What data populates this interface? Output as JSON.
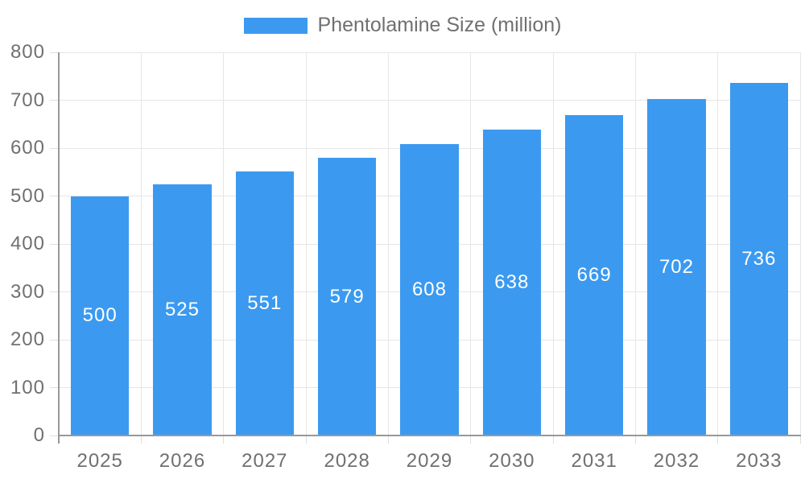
{
  "chart_data": {
    "type": "bar",
    "legend": "Phentolamine Size (million)",
    "legend_position": "top",
    "categories": [
      "2025",
      "2026",
      "2027",
      "2028",
      "2029",
      "2030",
      "2031",
      "2032",
      "2033"
    ],
    "series": [
      {
        "name": "Phentolamine Size (million)",
        "values": [
          500,
          525,
          551,
          579,
          608,
          638,
          669,
          702,
          736
        ]
      }
    ],
    "value_labels": [
      "500",
      "525",
      "551",
      "579",
      "608",
      "638",
      "669",
      "702",
      "736"
    ],
    "xlabel": "",
    "ylabel": "",
    "ylim": [
      0,
      800
    ],
    "ytick_step": 100,
    "ytick_labels": [
      "0",
      "100",
      "200",
      "300",
      "400",
      "500",
      "600",
      "700",
      "800"
    ],
    "grid": true,
    "colors": {
      "bar": "#3B9AF0",
      "axis": "#999999",
      "grid": "#E6E6E6",
      "tick": "#DEDEDE",
      "tick_label": "#707070",
      "value_label": "#FFFFFF"
    }
  }
}
